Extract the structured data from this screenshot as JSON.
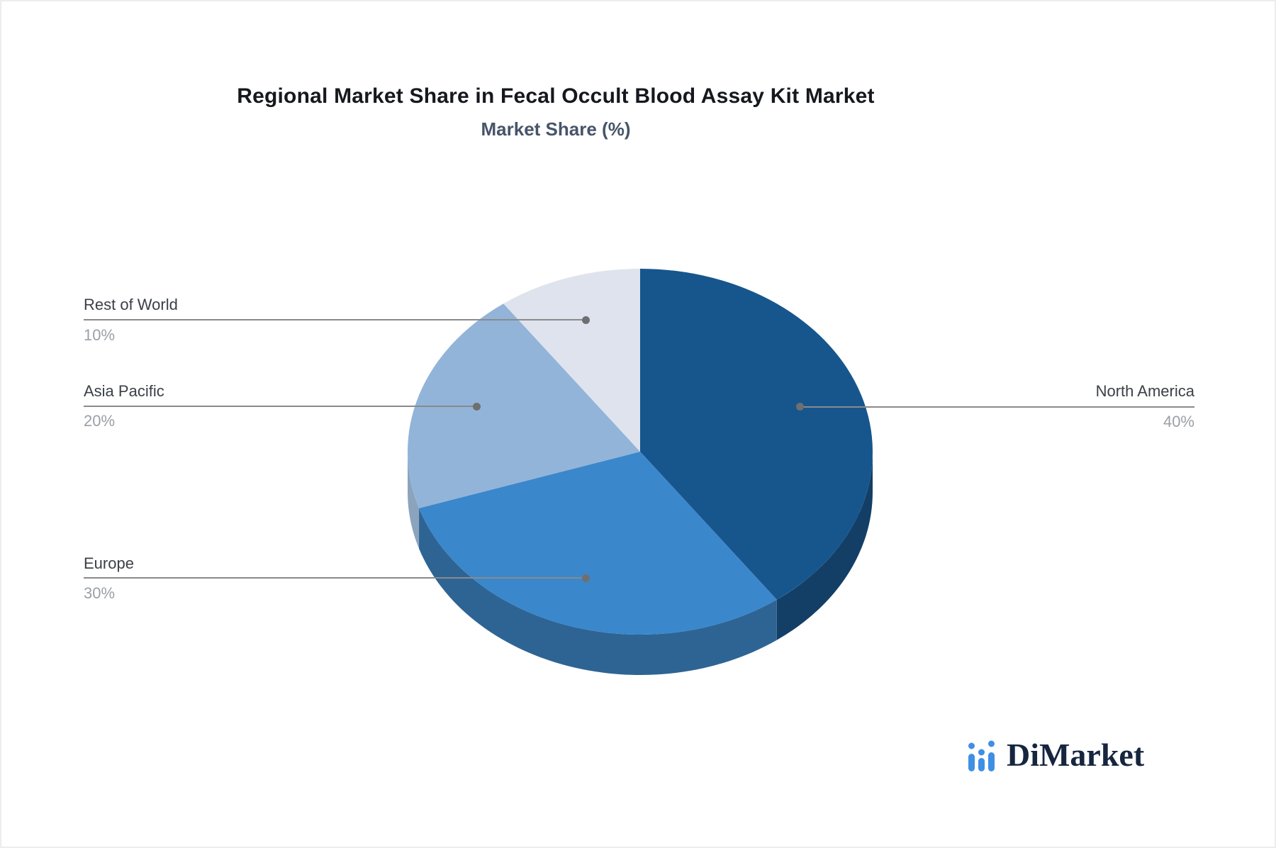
{
  "chart_data": {
    "type": "pie",
    "style": "3d-depth-pie",
    "title": "Regional Market Share in Fecal Occult Blood Assay Kit Market",
    "subtitle": "Market Share (%)",
    "unit": "%",
    "start_angle_deg": 0,
    "direction": "clockwise",
    "legend_position": "callout-labels",
    "slices": [
      {
        "label": "North America",
        "value": 40,
        "pct_label": "40%",
        "color": "#17568D",
        "side_color": "#133F66",
        "callout_side": "right"
      },
      {
        "label": "Europe",
        "value": 30,
        "pct_label": "30%",
        "color": "#3B87CB",
        "side_color": "#2E6494",
        "callout_side": "left"
      },
      {
        "label": "Asia Pacific",
        "value": 20,
        "pct_label": "20%",
        "color": "#92B4D9",
        "side_color": "#8CA3BD",
        "callout_side": "left"
      },
      {
        "label": "Rest of World",
        "value": 10,
        "pct_label": "10%",
        "color": "#DEE3ED",
        "callout_side": "left"
      }
    ],
    "callout_line_color": "#8a8a8a",
    "callout_dot_color": "#6f6f6f"
  },
  "brand": {
    "name": "DiMarket",
    "icon": "bar-chart-dots-icon",
    "accent_color": "#3F8FE5",
    "text_color": "#16263F"
  }
}
